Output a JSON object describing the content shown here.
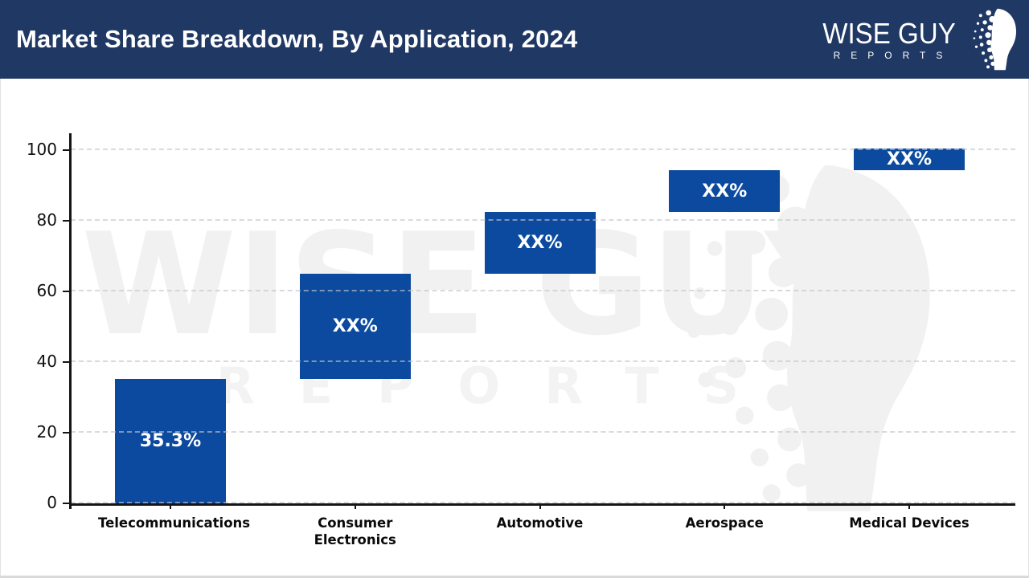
{
  "header": {
    "title": "Market Share Breakdown, By Application, 2024",
    "logo": {
      "name": "WISE GUY",
      "tagline": "REPORTS"
    }
  },
  "watermark": {
    "line1": "WISE GUY",
    "line2": "REPORTS"
  },
  "chart_data": {
    "type": "bar",
    "subtype": "floating-waterfall",
    "title": "Market Share Breakdown, By Application, 2024",
    "categories": [
      "Telecommunications",
      "Consumer Electronics",
      "Automotive",
      "Aerospace",
      "Medical Devices"
    ],
    "segments": [
      {
        "category": "Telecommunications",
        "start": 0,
        "end": 35.3,
        "label": "35.3%"
      },
      {
        "category": "Consumer Electronics",
        "start": 35.3,
        "end": 65,
        "label": "XX%"
      },
      {
        "category": "Automotive",
        "start": 65,
        "end": 82.5,
        "label": "XX%"
      },
      {
        "category": "Aerospace",
        "start": 82.5,
        "end": 94.3,
        "label": "XX%"
      },
      {
        "category": "Medical Devices",
        "start": 94.3,
        "end": 100.5,
        "label": "XX%"
      }
    ],
    "yticks": [
      0,
      20,
      40,
      60,
      80,
      100
    ],
    "ylim": [
      0,
      106
    ],
    "xlabel": "",
    "ylabel": "",
    "legend": null,
    "grid": {
      "axis": "y",
      "style": "dashed",
      "drawn_over_bars": true
    },
    "colors": {
      "bar": "#0b4a9e",
      "bar_label": "#ffffff",
      "header_bg": "#203864",
      "axis": "#151515",
      "gridline": "#c9ccd2",
      "watermark": "#f1f1f1"
    }
  }
}
